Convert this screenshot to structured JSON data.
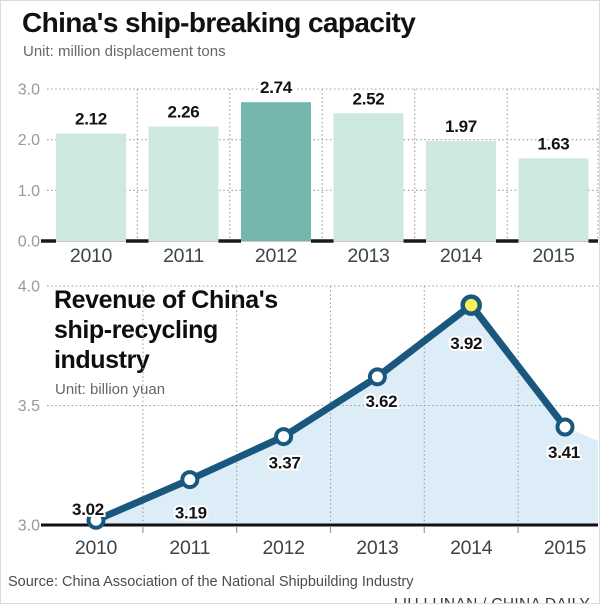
{
  "header": {
    "title": "China's ship-breaking capacity",
    "unit": "Unit: million displacement tons"
  },
  "chart_data": [
    {
      "type": "bar",
      "title": "China's ship-breaking capacity",
      "unit_label": "Unit: million displacement tons",
      "categories": [
        "2010",
        "2011",
        "2012",
        "2013",
        "2014",
        "2015"
      ],
      "values": [
        2.12,
        2.26,
        2.74,
        2.52,
        1.97,
        1.63
      ],
      "value_labels": [
        "2.12",
        "2.26",
        "2.74",
        "2.52",
        "1.97",
        "1.63"
      ],
      "highlight_index": 2,
      "ylim": [
        0,
        3
      ],
      "yticks": [
        {
          "label": "3.0",
          "value": 3
        },
        {
          "label": "2.0",
          "value": 2
        },
        {
          "label": "1.0",
          "value": 1
        },
        {
          "label": "0.0",
          "value": 0
        }
      ],
      "grid": "dotted",
      "bar_color": "#cde7e1",
      "highlight_color": "#75b7ae",
      "axis_color": "#1a1a1a"
    },
    {
      "type": "line",
      "title": "Revenue of China's ship-recycling industry",
      "title_lines": [
        "Revenue of China's",
        "ship-recycling",
        "industry"
      ],
      "unit_label": "Unit: billion yuan",
      "categories": [
        "2010",
        "2011",
        "2012",
        "2013",
        "2014",
        "2015"
      ],
      "values": [
        3.02,
        3.19,
        3.37,
        3.62,
        3.92,
        3.41
      ],
      "value_labels": [
        "3.02",
        "3.19",
        "3.37",
        "3.62",
        "3.92",
        "3.41"
      ],
      "highlight_index": 4,
      "ylim": [
        3,
        4
      ],
      "yticks": [
        {
          "label": "4.0",
          "value": 4
        },
        {
          "label": "3.5",
          "value": 3.5
        },
        {
          "label": "3.0",
          "value": 3
        }
      ],
      "grid": "dotted",
      "line_color": "#1a577e",
      "area_fill_color": "#ddedf8",
      "marker_fill_color": "#ffffff",
      "peak_marker_fill_color": "#f6ee5a",
      "axis_color": "#111111"
    }
  ],
  "footer": {
    "source": "Source: China Association of the National Shipbuilding Industry",
    "credit": "LIU LUNAN / CHINA DAILY"
  }
}
